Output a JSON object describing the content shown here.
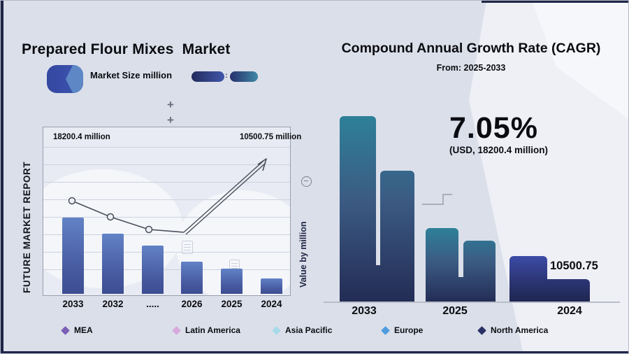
{
  "header": {
    "title": "Prepared Flour Mixes  Market",
    "market_size_label": "Market Size million"
  },
  "cagr": {
    "title": "Compound Annual Growth Rate (CAGR)",
    "subtitle": "From: 2025-2033",
    "value": "7.05%",
    "note": "(USD, 18200.4 million)",
    "bar_label": "10500.75",
    "categories": [
      "2033",
      "2025",
      "2024"
    ]
  },
  "left_chart": {
    "top_left_value": "18200.4 million",
    "top_right_value": "10500.75 million",
    "side_label": "FUTURE MARKET REPORT",
    "ylabel": "Value by million",
    "categories": [
      "2033",
      "2032",
      ".....",
      "2026",
      "2025",
      "2024"
    ]
  },
  "legend": {
    "items": [
      {
        "label": "MEA",
        "color": "#7a5fb5"
      },
      {
        "label": "Latin America",
        "color": "#d7aadb"
      },
      {
        "label": "Asia Pacific",
        "color": "#a7d9e9"
      },
      {
        "label": "Europe",
        "color": "#4f9ce0"
      },
      {
        "label": "North America",
        "color": "#2a3166"
      }
    ]
  },
  "colors": {
    "background": "#dbdfe9",
    "background_light": "#eef0f6",
    "frame": "#1f2547",
    "left_bar_top": "#6282c6",
    "left_bar_mid": "#46589e",
    "left_bar_bottom": "#3d4d92",
    "teal_top": "#2e8099",
    "teal_mid": "#3b5b83",
    "teal_bottom": "#232c55",
    "royal_top": "#3c4ba6",
    "royal_mid": "#2b3573",
    "royal_bottom": "#1f2650",
    "line_stroke": "#4a4f5a"
  },
  "chart_data": [
    {
      "type": "bar",
      "title": "Prepared Flour Mixes Market — Market Size million",
      "categories": [
        "2033",
        "2032",
        ".....",
        "2026",
        "2025",
        "2024"
      ],
      "values": [
        18200.4,
        null,
        null,
        null,
        null,
        10500.75
      ],
      "labeled_points": {
        "2033": "18200.4 million",
        "2024": "10500.75 million"
      },
      "xlabel": "",
      "ylabel": "Value by million",
      "grid": true,
      "annotations": [
        "declining marker line over first three bars",
        "upward double-line arrow toward top right"
      ]
    },
    {
      "type": "bar",
      "title": "Compound Annual Growth Rate (CAGR)",
      "subtitle": "From: 2025-2033",
      "cagr_percent": 7.05,
      "cagr_note": "(USD, 18200.4 million)",
      "categories": [
        "2033",
        "2025",
        "2024"
      ],
      "values": [
        null,
        null,
        10500.75
      ],
      "labeled_points": {
        "2024": 10500.75
      },
      "grid": false,
      "legend_position": "bottom",
      "legend_entries": [
        "MEA",
        "Latin America",
        "Asia Pacific",
        "Europe",
        "North America"
      ]
    }
  ]
}
